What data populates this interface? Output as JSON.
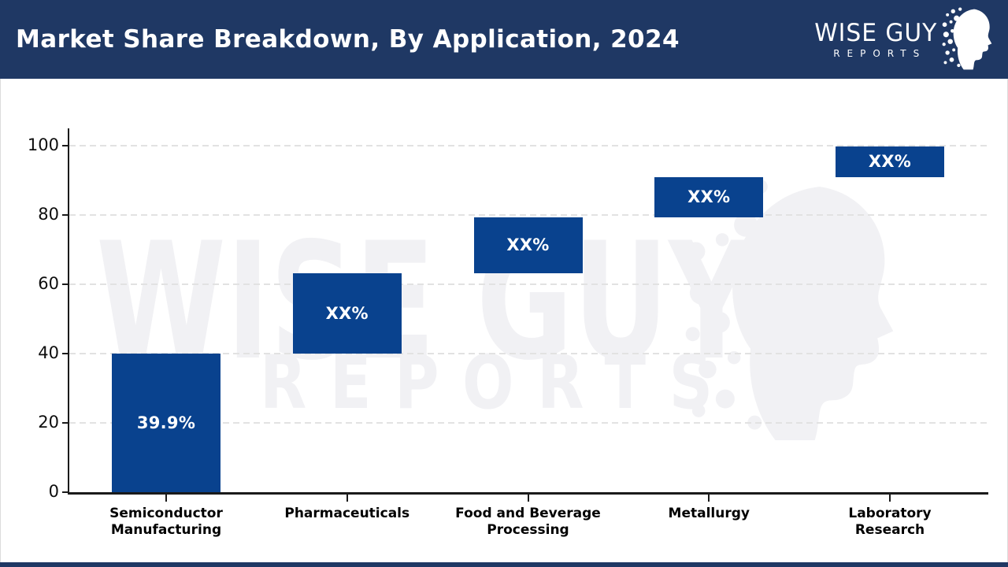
{
  "header": {
    "title": "Market Share Breakdown, By Application, 2024",
    "logo": {
      "line1": "WISE GUY",
      "line2": "REPORTS"
    }
  },
  "watermark": {
    "line1": "WISE GUY",
    "line2": "REPORTS"
  },
  "colors": {
    "header_bg": "#1f3864",
    "bar_blue": "#09428e",
    "grid_gray": "#e2e2e2",
    "axis_black": "#1a1a1a",
    "watermark_gray": "#f1f1f4",
    "bar_label_white": "#ffffff"
  },
  "chart_data": {
    "type": "bar",
    "subtype": "waterfall",
    "title": "Market Share Breakdown, By Application, 2024",
    "categories": [
      "Semiconductor Manufacturing",
      "Pharmaceuticals",
      "Food and Beverage Processing",
      "Metallurgy",
      "Laboratory Research"
    ],
    "category_lines": [
      [
        "Semiconductor",
        "Manufacturing"
      ],
      [
        "Pharmaceuticals"
      ],
      [
        "Food and Beverage",
        "Processing"
      ],
      [
        "Metallurgy"
      ],
      [
        "Laboratory",
        "Research"
      ]
    ],
    "segments": [
      {
        "category": "Semiconductor Manufacturing",
        "start": 0,
        "end": 39.9,
        "value_label": "39.9%"
      },
      {
        "category": "Pharmaceuticals",
        "start": 39.9,
        "end": 63.2,
        "value_label": "XX%"
      },
      {
        "category": "Food and Beverage Processing",
        "start": 63.2,
        "end": 79.4,
        "value_label": "XX%"
      },
      {
        "category": "Metallurgy",
        "start": 79.4,
        "end": 91.0,
        "value_label": "XX%"
      },
      {
        "category": "Laboratory Research",
        "start": 91.0,
        "end": 99.8,
        "value_label": "XX%"
      }
    ],
    "ylabel": "",
    "xlabel": "",
    "yticks": [
      0,
      20,
      40,
      60,
      80,
      100
    ],
    "ylim": [
      0,
      105
    ],
    "grid": "horizontal-dashed",
    "legend": false
  }
}
